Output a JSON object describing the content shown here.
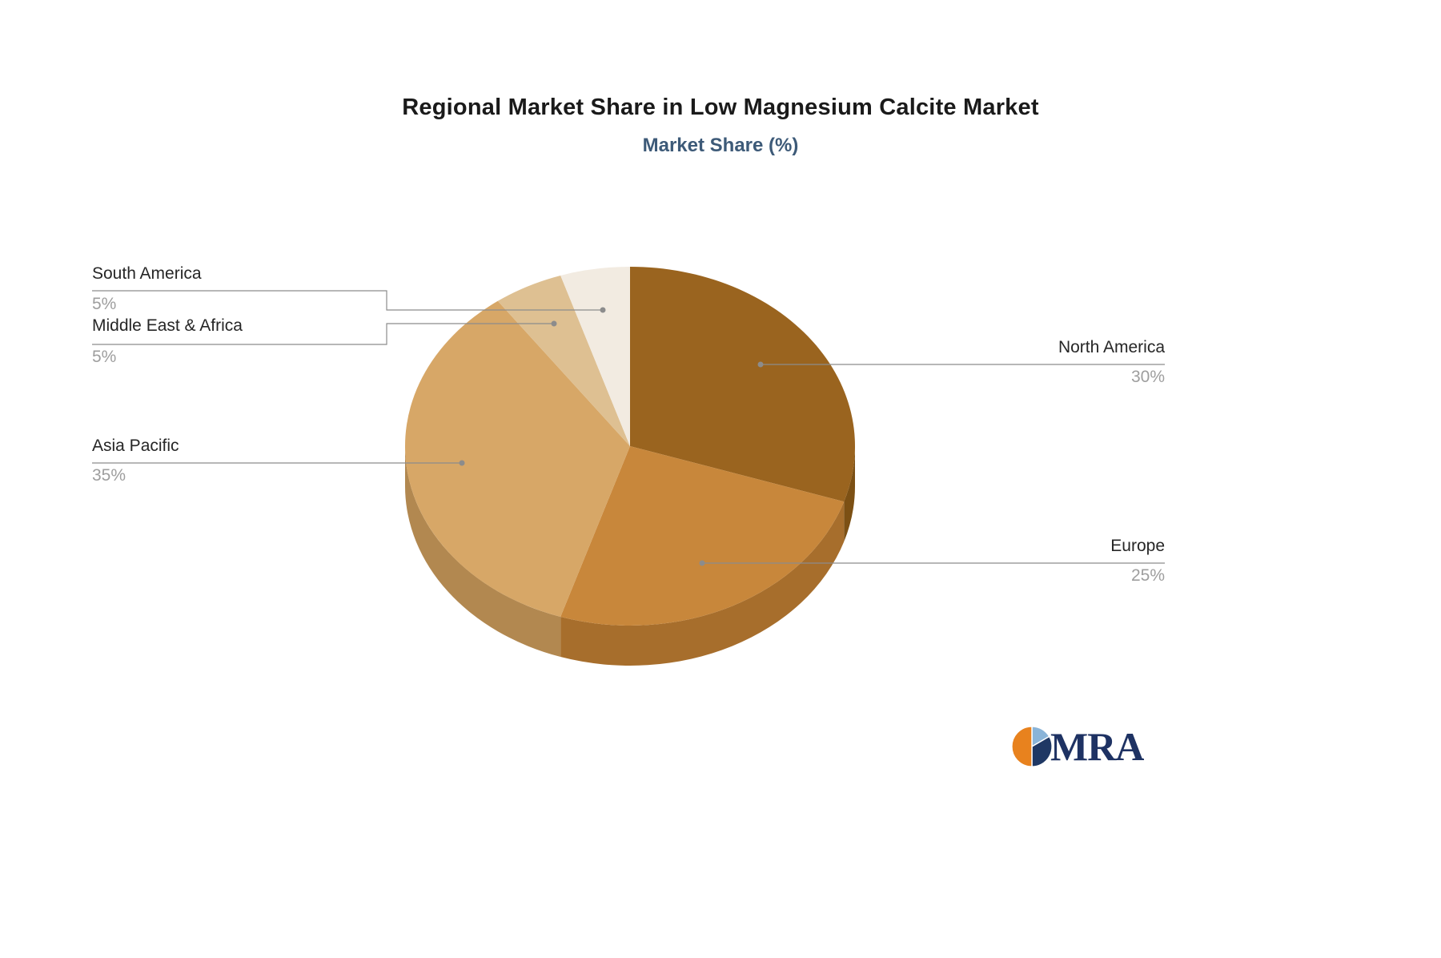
{
  "chart_data": {
    "type": "pie",
    "style": "3d",
    "title": "Regional Market Share in Low Magnesium Calcite Market",
    "subtitle": "Market Share (%)",
    "unit": "%",
    "start_angle_deg": -90,
    "direction": "clockwise",
    "legend_position": "outside-callouts",
    "slices": [
      {
        "label": "North America",
        "value": 30,
        "display": "30%",
        "color": "#9a641f",
        "side_color": "#7c5014"
      },
      {
        "label": "Europe",
        "value": 25,
        "display": "25%",
        "color": "#c8873b",
        "side_color": "#a76e2c"
      },
      {
        "label": "Asia Pacific",
        "value": 35,
        "display": "35%",
        "color": "#d7a767",
        "side_color": "#b28850"
      },
      {
        "label": "Middle East & Africa",
        "value": 5,
        "display": "5%",
        "color": "#dec092",
        "side_color": "#b89a6e"
      },
      {
        "label": "South America",
        "value": 5,
        "display": "5%",
        "color": "#f2ebe1",
        "side_color": "#cfc3b2"
      }
    ]
  },
  "colors": {
    "title_text": "#1a1a1a",
    "subtitle_text": "#3d5a78",
    "label_text": "#262626",
    "percent_text": "#9e9e9e",
    "leader_line": "#8c8c8c",
    "background": "#ffffff"
  },
  "logo": {
    "text": "MRA",
    "navy": "#1f3864",
    "orange": "#e8821e",
    "light_blue": "#8ab4d8"
  }
}
